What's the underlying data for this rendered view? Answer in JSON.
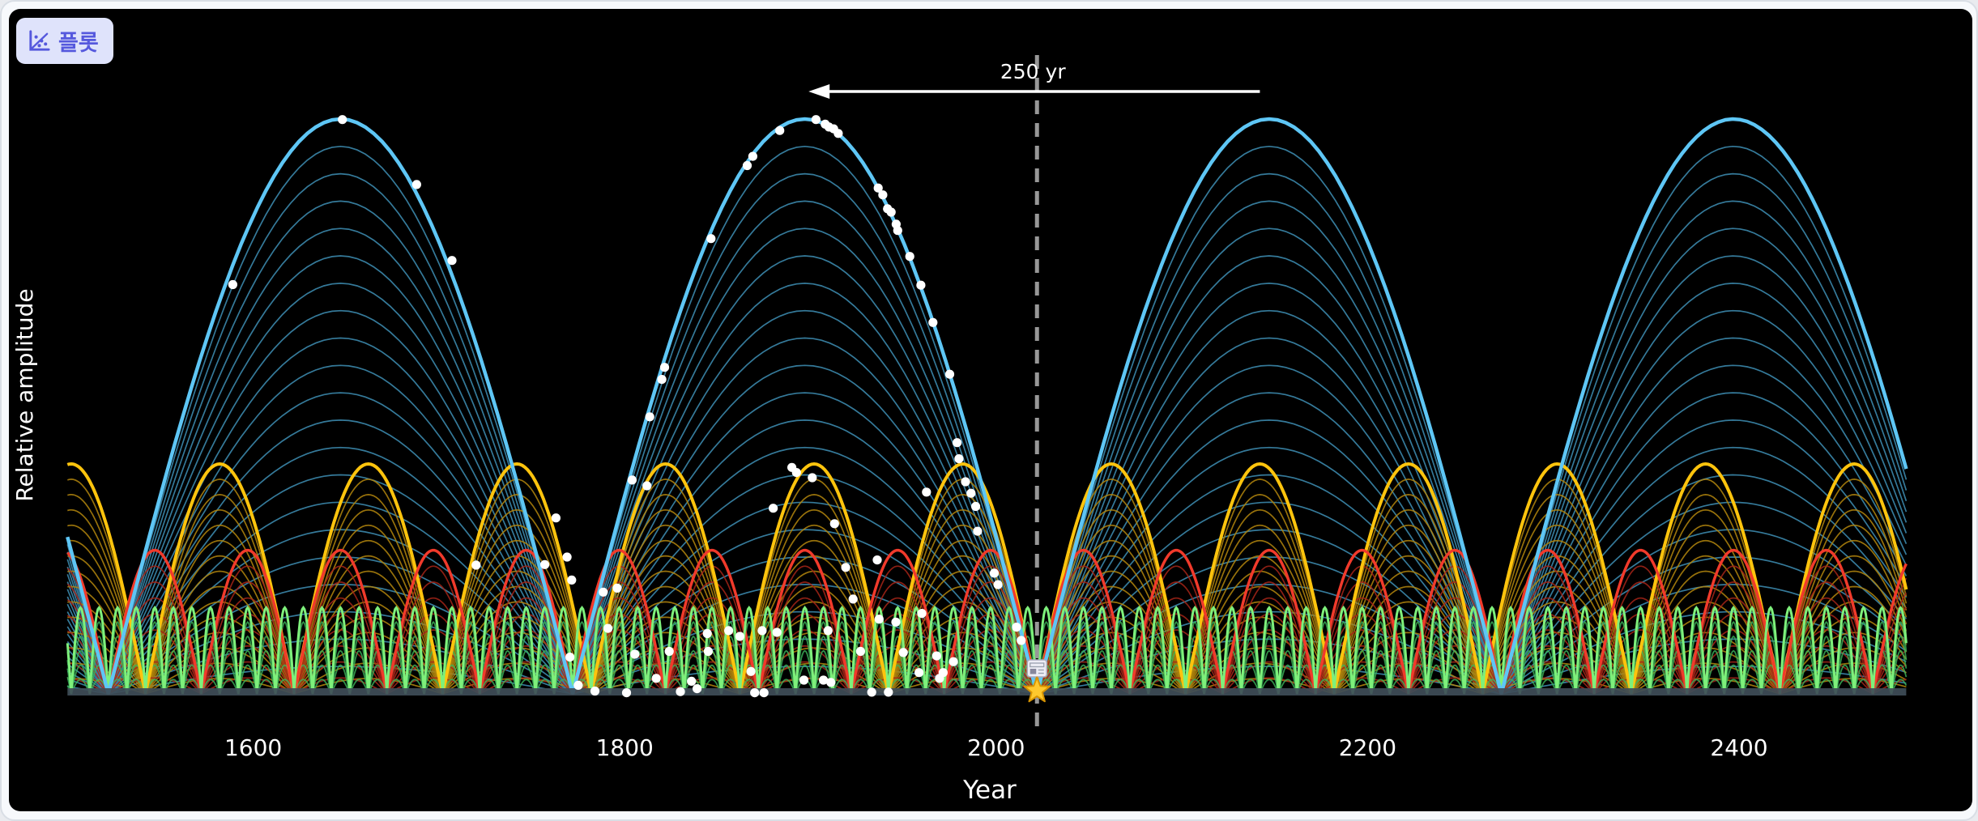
{
  "page": {
    "background": "#f7f9fc",
    "border_color": "#d9dee5",
    "canvas_background": "#000000"
  },
  "toolbar": {
    "plot_button": {
      "label": "플롯",
      "icon": "scatter-chart-icon",
      "background": "#dfe3fb",
      "color": "#5558dd"
    }
  },
  "chart_data": {
    "type": "line",
    "title": "",
    "xlabel": "Year",
    "ylabel": "Relative amplitude",
    "x_domain": [
      1500,
      2490
    ],
    "x_ticks": [
      1600,
      1800,
      2000,
      2200,
      2400
    ],
    "ylim": [
      0,
      1.05
    ],
    "grid": false,
    "legend": "none",
    "alignment_year": 2022,
    "reference_line": {
      "year": 2022,
      "style": "dashed",
      "color": "#989898",
      "icons": [
        "newspaper-icon",
        "star-icon"
      ],
      "star_color": "#ffc92e",
      "star_edge": "#d89400"
    },
    "annotation": {
      "label": "250 yr",
      "arrow_to_year": 1899,
      "arrow_from_year": 2142,
      "color": "#ffffff"
    },
    "series": [
      {
        "name": "blue",
        "label": "250-yr cycle",
        "period": 250,
        "amplitude": 1.0,
        "lines": 21,
        "outer_color": "#5ec6f5",
        "inner_color": "#3e8fb5",
        "outer_width": 4.5,
        "inner_width": 1.7,
        "inner_opacity": 0.85
      },
      {
        "name": "yellow",
        "label": "80-yr cycle",
        "period": 80,
        "amplitude": 0.4,
        "lines": 15,
        "outer_color": "#ffc40d",
        "inner_color": "#b3860d",
        "outer_width": 4.0,
        "inner_width": 1.7,
        "inner_opacity": 0.85
      },
      {
        "name": "red",
        "label": "50-yr cycle",
        "period": 50,
        "amplitude": 0.25,
        "lines": 9,
        "outer_color": "#f13a2b",
        "inner_color": "#a62418",
        "outer_width": 3.5,
        "inner_width": 1.7,
        "inner_opacity": 0.85
      },
      {
        "name": "green",
        "label": "10-yr cycle",
        "period": 10,
        "amplitude": 0.15,
        "lines": 6,
        "outer_color": "#7ef07b",
        "inner_color": "#3cb45a",
        "outer_width": 3.0,
        "inner_width": 1.8,
        "inner_opacity": 0.8
      }
    ],
    "draw_order": {
      "inner": [
        "blue",
        "yellow",
        "red",
        "green"
      ],
      "outer": [
        "yellow",
        "red",
        "green",
        "blue"
      ]
    },
    "observations_format": [
      "year",
      "relative_amplitude"
    ],
    "observations": [
      [
        1589,
        0.712
      ],
      [
        1648,
        0.999
      ],
      [
        1688,
        0.886
      ],
      [
        1707,
        0.754
      ],
      [
        1720,
        0.224
      ],
      [
        1757,
        0.225
      ],
      [
        1763,
        0.306
      ],
      [
        1769,
        0.238
      ],
      [
        1770.5,
        0.064
      ],
      [
        1771.5,
        0.198
      ],
      [
        1775,
        0.015
      ],
      [
        1784,
        0.005
      ],
      [
        1788.5,
        0.177
      ],
      [
        1791,
        0.114
      ],
      [
        1796,
        0.184
      ],
      [
        1801,
        0.002
      ],
      [
        1804,
        0.372
      ],
      [
        1805.5,
        0.069
      ],
      [
        1812,
        0.362
      ],
      [
        1813.5,
        0.482
      ],
      [
        1817,
        0.027
      ],
      [
        1820,
        0.547
      ],
      [
        1821.5,
        0.568
      ],
      [
        1824,
        0.074
      ],
      [
        1830,
        0.004
      ],
      [
        1836,
        0.022
      ],
      [
        1839,
        0.009
      ],
      [
        1844.5,
        0.105
      ],
      [
        1845,
        0.074
      ],
      [
        1846.5,
        0.792
      ],
      [
        1856,
        0.11
      ],
      [
        1862,
        0.1
      ],
      [
        1866,
        0.919
      ],
      [
        1868,
        0.039
      ],
      [
        1869,
        0.935
      ],
      [
        1870,
        0.002
      ],
      [
        1874,
        0.11
      ],
      [
        1875,
        0.002
      ],
      [
        1880,
        0.323
      ],
      [
        1882,
        0.107
      ],
      [
        1883.5,
        0.98
      ],
      [
        1890,
        0.394
      ],
      [
        1892.5,
        0.385
      ],
      [
        1896.5,
        0.024
      ],
      [
        1901,
        0.376
      ],
      [
        1903,
        0.999
      ],
      [
        1907,
        0.024
      ],
      [
        1908,
        0.991
      ],
      [
        1909.5,
        0.11
      ],
      [
        1910,
        0.986
      ],
      [
        1911,
        0.02
      ],
      [
        1912.5,
        0.983
      ],
      [
        1913,
        0.296
      ],
      [
        1915,
        0.975
      ],
      [
        1919,
        0.22
      ],
      [
        1923,
        0.165
      ],
      [
        1927,
        0.074
      ],
      [
        1933,
        0.003
      ],
      [
        1936,
        0.233
      ],
      [
        1936.5,
        0.88
      ],
      [
        1937,
        0.13
      ],
      [
        1939,
        0.868
      ],
      [
        1941.5,
        0.844
      ],
      [
        1942,
        0.003
      ],
      [
        1943.5,
        0.838
      ],
      [
        1946,
        0.125
      ],
      [
        1946.2,
        0.817
      ],
      [
        1947,
        0.806
      ],
      [
        1950,
        0.072
      ],
      [
        1953.5,
        0.761
      ],
      [
        1958.5,
        0.037
      ],
      [
        1959.5,
        0.711
      ],
      [
        1960,
        0.14
      ],
      [
        1962.5,
        0.351
      ],
      [
        1966,
        0.646
      ],
      [
        1968,
        0.066
      ],
      [
        1969.5,
        0.027
      ],
      [
        1971.5,
        0.037
      ],
      [
        1975,
        0.556
      ],
      [
        1977,
        0.056
      ],
      [
        1979,
        0.437
      ],
      [
        1980,
        0.409
      ],
      [
        1983.5,
        0.369
      ],
      [
        1986.5,
        0.349
      ],
      [
        1989,
        0.326
      ],
      [
        1990,
        0.283
      ],
      [
        1999,
        0.21
      ],
      [
        2001,
        0.19
      ],
      [
        2011,
        0.116
      ],
      [
        2013.5,
        0.093
      ]
    ],
    "observation_color": "#ffffff",
    "baseline_strip_color": "#3f4d58"
  }
}
